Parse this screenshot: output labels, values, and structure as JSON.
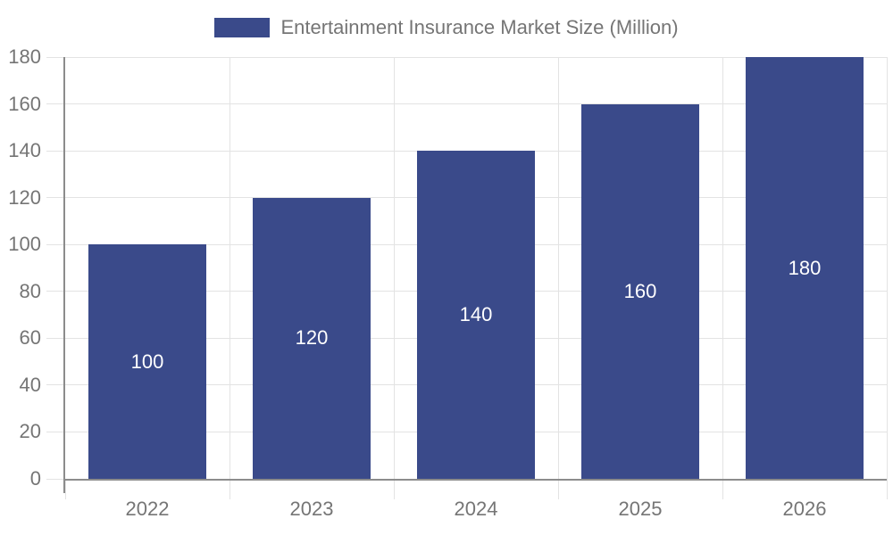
{
  "chart_data": {
    "type": "bar",
    "title": "Entertainment Insurance Market Size (Million)",
    "series_name": "Entertainment Insurance Market Size (Million)",
    "categories": [
      "2022",
      "2023",
      "2024",
      "2025",
      "2026"
    ],
    "values": [
      100,
      120,
      140,
      160,
      180
    ],
    "xlabel": "",
    "ylabel": "",
    "ylim": [
      0,
      180
    ],
    "yticks": [
      0,
      20,
      40,
      60,
      80,
      100,
      120,
      140,
      160,
      180
    ],
    "grid": true,
    "legend_position": "top-center",
    "data_label_position": "inside-center"
  },
  "colors": {
    "bar": "#3A4A8A",
    "legend_text": "#757575",
    "axis_text": "#757575",
    "axis_line": "#8C8C8C",
    "gridline": "#E3E3E3",
    "data_label": "#FFFFFF",
    "background": "#FFFFFF"
  }
}
